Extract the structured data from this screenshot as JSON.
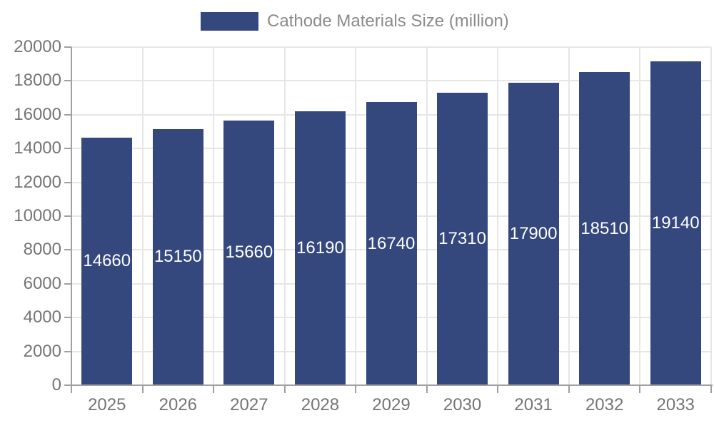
{
  "legend": {
    "label": "Cathode Materials Size (million)"
  },
  "chart_data": {
    "type": "bar",
    "title": "",
    "legend_label": "Cathode Materials Size (million)",
    "series_name": "Cathode Materials Size (million)",
    "categories": [
      "2025",
      "2026",
      "2027",
      "2028",
      "2029",
      "2030",
      "2031",
      "2032",
      "2033"
    ],
    "values": [
      14660,
      15150,
      15660,
      16190,
      16740,
      17310,
      17900,
      18510,
      19140
    ],
    "xlabel": "",
    "ylabel": "",
    "ylim": [
      0,
      20000
    ],
    "yticks": [
      0,
      2000,
      4000,
      6000,
      8000,
      10000,
      12000,
      14000,
      16000,
      18000,
      20000
    ],
    "grid": true,
    "bar_value_labels_visible": true,
    "legend_position": "top-center",
    "colors": {
      "bar": "#35487D",
      "grid": "#e6e6e6",
      "axis": "#a0a0a0",
      "axis_text": "#757575",
      "legend_text": "#8b8b8b",
      "bar_label": "#ffffff",
      "background": "#ffffff"
    }
  }
}
